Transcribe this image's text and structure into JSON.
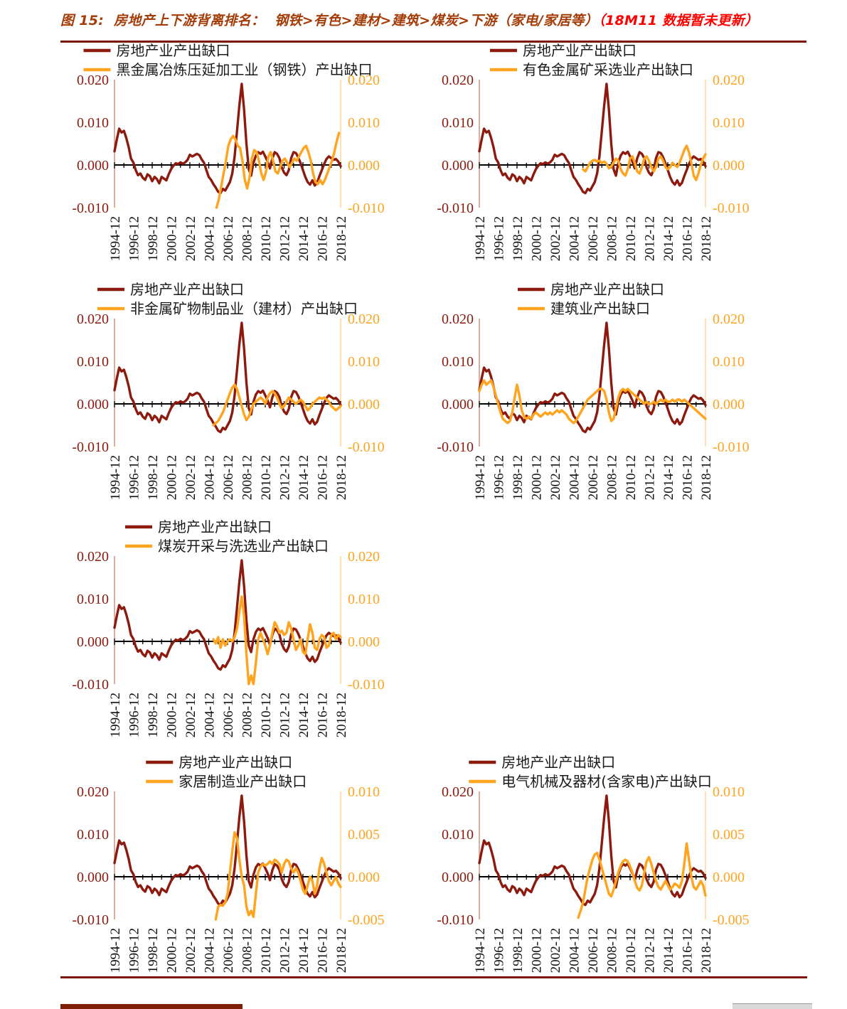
{
  "title": {
    "main": "图 15:  房地产上下游背离排名：  钢铁>有色>建材>建筑>煤炭>下游（家电/家居等）",
    "note": "（18M11 数据暂未更新）",
    "main_color": "#A43C08",
    "note_color": "#FF0000"
  },
  "colors": {
    "series_red": "#8C1A0E",
    "series_orange": "#FFA41E",
    "left_axis_line": "#C4826F",
    "right_axis_line": "#FFCE8A",
    "axis_text_red": "#8C1A0E",
    "axis_text_orange": "#FFA41E",
    "zero_line": "#000000",
    "x_label": "#111111",
    "legend_text": "#1a1a1a",
    "rule": "#7D1505",
    "partial_red_bar": "#7E2008",
    "partial_gray_bar": "#D9D9D9"
  },
  "shared_series": {
    "real_estate": {
      "name": "房地产业产出缺口",
      "x_start": 1994.92,
      "x_step": 0.25,
      "scale": 0.001,
      "values": [
        3.2,
        6,
        8.5,
        7.6,
        8,
        6.3,
        4.2,
        1.5,
        0.6,
        -1.2,
        -2.4,
        -2,
        -3,
        -3.5,
        -2.2,
        -2.6,
        -3.8,
        -2.8,
        -3.3,
        -4.3,
        -2.8,
        -3.2,
        -3.6,
        -2.2,
        -1,
        -0.2,
        0.4,
        0.2,
        0.6,
        0.3,
        0.6,
        1.2,
        2.4,
        2,
        2.3,
        2.6,
        2.3,
        1.3,
        0.5,
        -1.2,
        -2.8,
        -3.5,
        -4.5,
        -5.3,
        -6.3,
        -6.6,
        -5.6,
        -6,
        -5,
        -4,
        -2,
        2,
        8,
        14,
        19,
        13,
        5,
        -1,
        -2.5,
        0.5,
        2.2,
        3,
        2.6,
        3.1,
        2,
        0.8,
        -0.8,
        1.5,
        3,
        2.6,
        1.6,
        -0.6,
        -1.8,
        -2.4,
        -1.2,
        1.6,
        3,
        2.8,
        1.8,
        0.4,
        -1.2,
        -2.8,
        -4,
        -4.6,
        -3.6,
        -4.8,
        -4.2,
        -2.6,
        -1.2,
        0.2,
        1.4,
        2,
        1.6,
        1.2,
        1.4,
        0.8,
        -0.3
      ]
    }
  },
  "chart_data": [
    {
      "type": "line",
      "name": "real-estate-vs-steel",
      "legend": [
        "房地产业产出缺口",
        "黑金属冶炼压延加工业（钢铁）产出缺口"
      ],
      "left_axis": {
        "ticks": [
          "0.020",
          "0.010",
          "0.000",
          "-0.010"
        ],
        "range": [
          -0.01,
          0.02
        ]
      },
      "right_axis": {
        "ticks": [
          "0.020",
          "0.010",
          "0.000",
          "-0.010"
        ],
        "range": [
          -0.01,
          0.02
        ]
      },
      "x_ticks": [
        "1994-12",
        "1996-12",
        "1998-12",
        "2000-12",
        "2002-12",
        "2004-12",
        "2006-12",
        "2008-12",
        "2010-12",
        "2012-12",
        "2014-12",
        "2016-12",
        "2018-12"
      ],
      "x_range": [
        1994.92,
        2018.92
      ],
      "series": [
        {
          "ref": "shared_series.real_estate",
          "axis": "left",
          "color_key": "series_red"
        },
        {
          "name": "黑金属冶炼压延加工业（钢铁）产出缺口",
          "axis": "right",
          "color_key": "series_orange",
          "x_start": 2005.75,
          "x_step": 0.25,
          "scale": 0.001,
          "values": [
            -10,
            -8,
            -5,
            -2,
            1,
            4.5,
            6,
            6.8,
            6,
            4.5,
            4,
            1,
            -3.5,
            -5.5,
            -3,
            1.5,
            3.5,
            3,
            1,
            -2,
            -3.5,
            -1.5,
            2,
            3,
            1,
            -1.5,
            -2,
            -0.5,
            1,
            1.5,
            0.5,
            -0.5,
            0.5,
            1.5,
            1,
            2,
            3,
            4,
            4.5,
            3,
            1,
            -2,
            -4,
            -4.5,
            -3.5,
            -4.5,
            -3.5,
            -2,
            -0.5,
            1,
            3,
            5.5,
            7.5
          ]
        }
      ]
    },
    {
      "type": "line",
      "name": "real-estate-vs-nonferrous",
      "legend": [
        "房地产业产出缺口",
        "有色金属矿采选业产出缺口"
      ],
      "left_axis": {
        "ticks": [
          "0.020",
          "0.010",
          "0.000",
          "-0.010"
        ],
        "range": [
          -0.01,
          0.02
        ]
      },
      "right_axis": {
        "ticks": [
          "0.020",
          "0.010",
          "0.000",
          "-0.010"
        ],
        "range": [
          -0.01,
          0.02
        ]
      },
      "x_ticks": [
        "1994-12",
        "1996-12",
        "1998-12",
        "2000-12",
        "2002-12",
        "2004-12",
        "2006-12",
        "2008-12",
        "2010-12",
        "2012-12",
        "2014-12",
        "2016-12",
        "2018-12"
      ],
      "x_range": [
        1994.92,
        2018.92
      ],
      "series": [
        {
          "ref": "shared_series.real_estate",
          "axis": "left",
          "color_key": "series_red"
        },
        {
          "name": "有色金属矿采选业产出缺口",
          "axis": "right",
          "color_key": "series_orange",
          "x_start": 2005.92,
          "x_step": 0.25,
          "scale": 0.001,
          "values": [
            -1,
            -1.5,
            -0.5,
            0.5,
            1,
            1.2,
            0.8,
            1,
            0.5,
            0.8,
            0.3,
            -0.8,
            -0.3,
            0.5,
            1.5,
            1,
            -1,
            -2,
            -2.5,
            -1,
            1.5,
            2,
            0.5,
            -1.5,
            -2,
            -0.5,
            1.5,
            2,
            1,
            -0.5,
            -1.5,
            -0.5,
            1.5,
            2,
            1,
            -0.5,
            -1,
            -0.5,
            0.5,
            0,
            -0.5,
            0.5,
            2,
            3.5,
            4.5,
            3,
            0.5,
            -2.5,
            -3.5,
            -2,
            0,
            1.5,
            2.5
          ]
        }
      ]
    },
    {
      "type": "line",
      "name": "real-estate-vs-building-materials",
      "legend": [
        "房地产业产出缺口",
        "非金属矿物制品业（建材）产出缺口"
      ],
      "left_axis": {
        "ticks": [
          "0.020",
          "0.010",
          "0.000",
          "-0.010"
        ],
        "range": [
          -0.01,
          0.02
        ]
      },
      "right_axis": {
        "ticks": [
          "0.020",
          "0.010",
          "0.000",
          "-0.010"
        ],
        "range": [
          -0.01,
          0.02
        ]
      },
      "x_ticks": [
        "1994-12",
        "1996-12",
        "1998-12",
        "2000-12",
        "2002-12",
        "2004-12",
        "2006-12",
        "2008-12",
        "2010-12",
        "2012-12",
        "2014-12",
        "2016-12",
        "2018-12"
      ],
      "x_range": [
        1994.92,
        2018.92
      ],
      "series": [
        {
          "ref": "shared_series.real_estate",
          "axis": "left",
          "color_key": "series_red"
        },
        {
          "name": "非金属矿物制品业（建材）产出缺口",
          "axis": "right",
          "color_key": "series_orange",
          "x_start": 2005.42,
          "x_step": 0.25,
          "scale": 0.001,
          "values": [
            -5,
            -4.5,
            -4,
            -3,
            -2,
            -0.5,
            1,
            2.5,
            3.8,
            4.5,
            3.5,
            1.5,
            -0.5,
            -2.5,
            -3.8,
            -3,
            -1.5,
            0,
            0.5,
            1,
            1.5,
            1,
            0,
            1.5,
            2.5,
            3,
            2.5,
            1.5,
            0,
            -1,
            -0.5,
            0.5,
            1.5,
            1,
            0.5,
            0,
            0.5,
            1,
            0.5,
            -0.5,
            -1.5,
            -1,
            0,
            0.5,
            1,
            1.5,
            1.2,
            1.5,
            1,
            0.5,
            -0.5,
            -1,
            -1.5,
            -1,
            -0.5
          ]
        }
      ]
    },
    {
      "type": "line",
      "name": "real-estate-vs-construction",
      "legend": [
        "房地产业产出缺口",
        "建筑业产出缺口"
      ],
      "left_axis": {
        "ticks": [
          "0.020",
          "0.010",
          "0.000",
          "-0.010"
        ],
        "range": [
          -0.01,
          0.02
        ]
      },
      "right_axis": {
        "ticks": [
          "0.020",
          "0.010",
          "0.000",
          "-0.010"
        ],
        "range": [
          -0.01,
          0.02
        ]
      },
      "x_ticks": [
        "1994-12",
        "1996-12",
        "1998-12",
        "2000-12",
        "2002-12",
        "2004-12",
        "2006-12",
        "2008-12",
        "2010-12",
        "2012-12",
        "2014-12",
        "2016-12",
        "2018-12"
      ],
      "x_range": [
        1994.92,
        2018.92
      ],
      "series": [
        {
          "ref": "shared_series.real_estate",
          "axis": "left",
          "color_key": "series_red"
        },
        {
          "name": "建筑业产出缺口",
          "axis": "right",
          "color_key": "series_orange",
          "x_start": 1994.92,
          "x_step": 0.25,
          "scale": 0.001,
          "values": [
            3,
            4.5,
            5.5,
            4.5,
            5,
            5.5,
            4,
            2,
            0,
            -2,
            -3.5,
            -4,
            -4.5,
            -4,
            -2,
            1.5,
            4.5,
            2,
            -1.5,
            -3,
            -3.5,
            -3,
            -3.5,
            -2.5,
            -2,
            -2.5,
            -3,
            -2.5,
            -2,
            -2.5,
            -2,
            -2.5,
            -2,
            -1.5,
            -2,
            -1.5,
            -2,
            -2.5,
            -3.5,
            -4,
            -4.5,
            -4,
            -3,
            -2,
            -1,
            0,
            1,
            1.5,
            2,
            2.5,
            3,
            3.5,
            3.5,
            3,
            1,
            -2,
            -4,
            -3.5,
            -1,
            1.5,
            3,
            3.5,
            3,
            3.5,
            3,
            2.5,
            2,
            1.5,
            1,
            0.5,
            0,
            0.5,
            0,
            0,
            0.5,
            0,
            0.5,
            1,
            0.5,
            1,
            0.5,
            0.5,
            1,
            0.5,
            1,
            1,
            0.5,
            1,
            0.5,
            0,
            -0.5,
            -1,
            -1.5,
            -2,
            -2.5,
            -3,
            -3.5
          ]
        }
      ]
    },
    {
      "type": "line",
      "name": "real-estate-vs-coal",
      "legend": [
        "房地产业产出缺口",
        "煤炭开采与洗选业产出缺口"
      ],
      "left_axis": {
        "ticks": [
          "0.020",
          "0.010",
          "0.000",
          "-0.010"
        ],
        "range": [
          -0.01,
          0.02
        ]
      },
      "right_axis": {
        "ticks": [
          "0.020",
          "0.010",
          "0.000",
          "-0.010"
        ],
        "range": [
          -0.01,
          0.02
        ]
      },
      "x_ticks": [
        "1994-12",
        "1996-12",
        "1998-12",
        "2000-12",
        "2002-12",
        "2004-12",
        "2006-12",
        "2008-12",
        "2010-12",
        "2012-12",
        "2014-12",
        "2016-12",
        "2018-12"
      ],
      "x_range": [
        1994.92,
        2018.92
      ],
      "series": [
        {
          "ref": "shared_series.real_estate",
          "axis": "left",
          "color_key": "series_red"
        },
        {
          "name": "煤炭开采与洗选业产出缺口",
          "axis": "right",
          "color_key": "series_orange",
          "x_start": 2005.42,
          "x_step": 0.25,
          "scale": 0.001,
          "values": [
            0.5,
            -0.5,
            1,
            -1.5,
            0.5,
            -1,
            0,
            0.5,
            0,
            1,
            3,
            7,
            10.5,
            6,
            -3,
            -11.5,
            -8,
            -12,
            -5,
            0.5,
            2,
            0.5,
            -1,
            -3,
            -1,
            2,
            4.5,
            3.5,
            2,
            2.5,
            1.5,
            2,
            4.5,
            3,
            0.5,
            -2,
            -1,
            0.5,
            -2.5,
            -3,
            0.5,
            4,
            2,
            -1.5,
            -2,
            0.5,
            1.5,
            1,
            -1.5,
            -1,
            1.5,
            2,
            0.5,
            1.5,
            1
          ]
        }
      ]
    },
    {
      "type": "line",
      "name": "real-estate-vs-furniture",
      "legend": [
        "房地产业产出缺口",
        "家居制造业产出缺口"
      ],
      "left_axis": {
        "ticks": [
          "0.020",
          "0.010",
          "0.000",
          "-0.010"
        ],
        "range": [
          -0.01,
          0.02
        ]
      },
      "right_axis": {
        "ticks": [
          "0.010",
          "0.005",
          "0.000",
          "-0.005"
        ],
        "range": [
          -0.005,
          0.01
        ]
      },
      "x_ticks": [
        "1994-12",
        "1996-12",
        "1998-12",
        "2000-12",
        "2002-12",
        "2004-12",
        "2006-12",
        "2008-12",
        "2010-12",
        "2012-12",
        "2014-12",
        "2016-12",
        "2018-12"
      ],
      "x_range": [
        1994.92,
        2018.92
      ],
      "series": [
        {
          "ref": "shared_series.real_estate",
          "axis": "left",
          "color_key": "series_red"
        },
        {
          "name": "家居制造业产出缺口",
          "axis": "right",
          "color_key": "series_orange",
          "x_start": 2005.67,
          "x_step": 0.25,
          "scale": 0.001,
          "values": [
            -5.2,
            -3.5,
            -3.3,
            -3.4,
            -3,
            -2,
            0.5,
            3,
            5.2,
            4.5,
            2,
            0,
            -1,
            -3.5,
            -4.5,
            -4,
            -4.7,
            -2,
            0.5,
            1.2,
            1.5,
            1.3,
            1.5,
            1.8,
            1.5,
            2,
            1.8,
            1.5,
            0.5,
            1.5,
            2,
            1.8,
            1,
            0.5,
            1,
            0.5,
            -0.5,
            -1.5,
            -2,
            -1,
            0,
            -0.5,
            -2,
            -1,
            1,
            2.2,
            1.5,
            0.5,
            -0.5,
            -1,
            -0.5,
            0,
            -0.8,
            -1.2
          ]
        }
      ]
    },
    {
      "type": "line",
      "name": "real-estate-vs-electrical-appliances",
      "legend": [
        "房地产业产出缺口",
        "电气机械及器材(含家电)产出缺口"
      ],
      "left_axis": {
        "ticks": [
          "0.020",
          "0.010",
          "0.000",
          "-0.010"
        ],
        "range": [
          -0.01,
          0.02
        ]
      },
      "right_axis": {
        "ticks": [
          "0.010",
          "0.005",
          "0.000",
          "-0.005"
        ],
        "range": [
          -0.005,
          0.01
        ]
      },
      "x_ticks": [
        "1994-12",
        "1996-12",
        "1998-12",
        "2000-12",
        "2002-12",
        "2004-12",
        "2006-12",
        "2008-12",
        "2010-12",
        "2012-12",
        "2014-12",
        "2016-12",
        "2018-12"
      ],
      "x_range": [
        1994.92,
        2018.92
      ],
      "series": [
        {
          "ref": "shared_series.real_estate",
          "axis": "left",
          "color_key": "series_red"
        },
        {
          "name": "电气机械及器材(含家电)产出缺口",
          "axis": "right",
          "color_key": "series_orange",
          "x_start": 2005.42,
          "x_step": 0.25,
          "scale": 0.001,
          "values": [
            -4.8,
            -4,
            -3,
            -1.5,
            0,
            1,
            2,
            2.6,
            2.8,
            2,
            1,
            0,
            -1,
            -2,
            -2.3,
            -1.5,
            -0.5,
            0.5,
            1.3,
            1.8,
            2,
            1.8,
            1.2,
            0.5,
            -0.5,
            -1.3,
            -1.6,
            -1,
            0.5,
            1.8,
            2.3,
            1.5,
            0.5,
            -0.5,
            -1.2,
            -1.5,
            -1,
            -0.5,
            -1,
            -1.5,
            -1.2,
            -0.8,
            -1,
            -1.3,
            -0.5,
            1.5,
            3.9,
            2,
            0,
            -1.2,
            -1.5,
            -1,
            -0.5,
            -1,
            -2.2
          ]
        }
      ]
    }
  ]
}
